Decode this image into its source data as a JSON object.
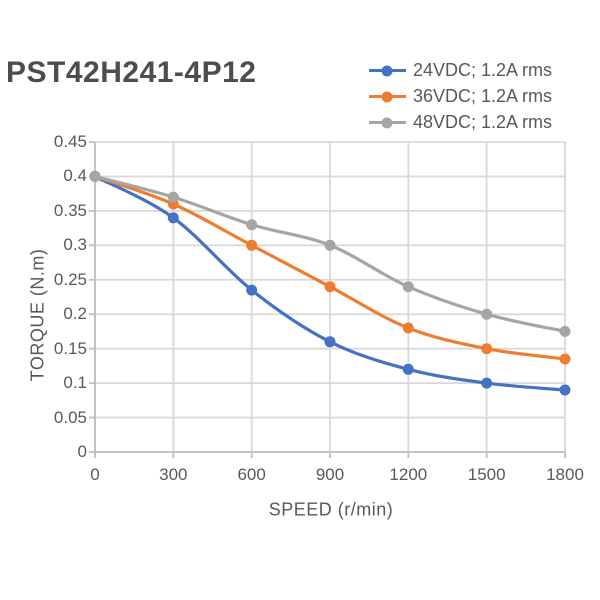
{
  "title": "PST42H241-4P12",
  "colors": {
    "grid": "#D9D9D9",
    "axis": "#BFBFBF",
    "text": "#595959",
    "title_text": "#4D4D4D",
    "background": "#FFFFFF"
  },
  "chart_data": {
    "type": "line",
    "title": "PST42H241-4P12",
    "xlabel": "SPEED (r/min)",
    "ylabel": "TORQUE (N.m)",
    "xlim": [
      0,
      1800
    ],
    "ylim": [
      0,
      0.45
    ],
    "x_ticks": [
      0,
      300,
      600,
      900,
      1200,
      1500,
      1800
    ],
    "y_ticks": [
      0,
      0.05,
      0.1,
      0.15,
      0.2,
      0.25,
      0.3,
      0.35,
      0.4,
      0.45
    ],
    "grid": true,
    "legend_position": "top-right",
    "marker": "circle",
    "smooth": true,
    "x": [
      0,
      300,
      600,
      900,
      1200,
      1500,
      1800
    ],
    "series": [
      {
        "name": "24VDC; 1.2A rms",
        "color": "#4472C4",
        "values": [
          0.4,
          0.34,
          0.235,
          0.16,
          0.12,
          0.1,
          0.09
        ]
      },
      {
        "name": "36VDC; 1.2A rms",
        "color": "#ED7D31",
        "values": [
          0.4,
          0.36,
          0.3,
          0.24,
          0.18,
          0.15,
          0.135
        ]
      },
      {
        "name": "48VDC; 1.2A rms",
        "color": "#A5A5A5",
        "values": [
          0.4,
          0.37,
          0.33,
          0.3,
          0.24,
          0.2,
          0.175
        ]
      }
    ]
  }
}
